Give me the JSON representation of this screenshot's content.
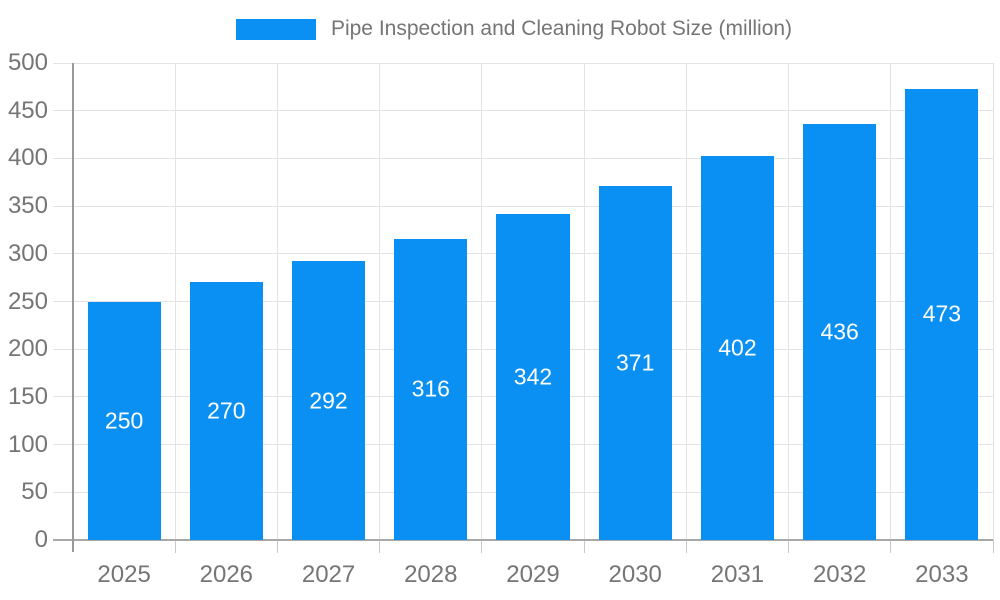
{
  "legend": {
    "label": "Pipe Inspection and Cleaning Robot Size (million)",
    "swatch_color": "#0a90f2"
  },
  "chart_data": {
    "type": "bar",
    "title": "Pipe Inspection and Cleaning Robot Size (million)",
    "categories": [
      "2025",
      "2026",
      "2027",
      "2028",
      "2029",
      "2030",
      "2031",
      "2032",
      "2033"
    ],
    "series": [
      {
        "name": "Pipe Inspection and Cleaning Robot Size (million)",
        "values": [
          250,
          270,
          292,
          316,
          342,
          371,
          402,
          436,
          473
        ]
      }
    ],
    "xlabel": "",
    "ylabel": "",
    "ylim": [
      0,
      500
    ],
    "ytick_step": 50,
    "yticks": [
      0,
      50,
      100,
      150,
      200,
      250,
      300,
      350,
      400,
      450,
      500
    ],
    "grid": true,
    "legend_position": "top-center",
    "value_label_position": "center",
    "colors": {
      "bar": "#0a90f2",
      "value_label": "#ffffff",
      "axis_text": "#757575",
      "gridline": "#e3e3e3",
      "axis_line": "#999999",
      "baseline": "#a8a8a8",
      "tick": "#c9c9c9",
      "background": "#ffffff"
    }
  }
}
